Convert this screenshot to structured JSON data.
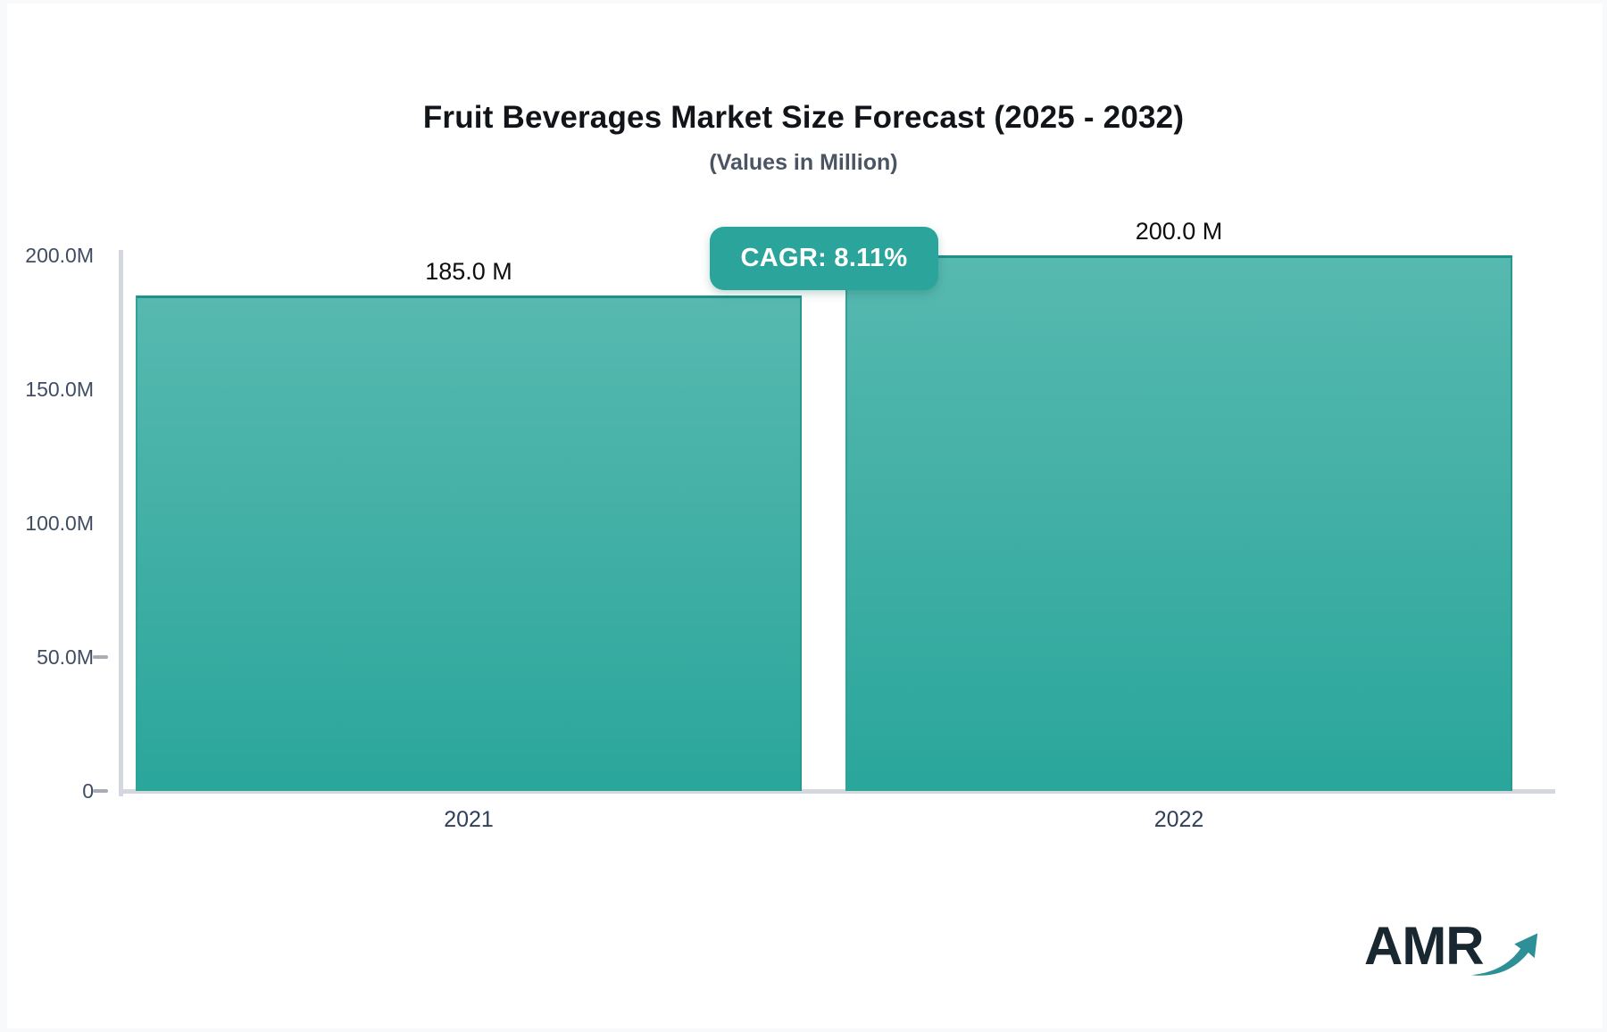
{
  "header": {
    "title": "Fruit Beverages Market Size Forecast (2025 - 2032)",
    "subtitle": "(Values in Million)"
  },
  "badge": {
    "label": "CAGR: 8.11%",
    "color": "#2ba59c"
  },
  "chart_data": {
    "type": "bar",
    "title": "Fruit Beverages Market Size Forecast (2025 - 2032)",
    "subtitle": "(Values in Million)",
    "categories": [
      "2021",
      "2022"
    ],
    "values": [
      185.0,
      200.0
    ],
    "value_labels": [
      "185.0 M",
      "200.0 M"
    ],
    "annotation": "CAGR: 8.11%",
    "ylim": [
      0,
      200
    ],
    "grid": false,
    "legend": false,
    "y_ticks": [
      {
        "label": "0",
        "value": 0,
        "dash": true
      },
      {
        "label": "50.0M",
        "value": 50,
        "dash": true
      },
      {
        "label": "100.0M",
        "value": 100,
        "dash": false
      },
      {
        "label": "150.0M",
        "value": 150,
        "dash": false
      },
      {
        "label": "200.0M",
        "value": 200,
        "dash": false
      }
    ],
    "bar_color_top": "#57b9b0",
    "bar_color_bottom": "#2aa69b",
    "bar_stroke": "#1d9288"
  },
  "logo": {
    "text": "AMR",
    "arrow_color": "#2f8f96",
    "text_color": "#182730"
  }
}
